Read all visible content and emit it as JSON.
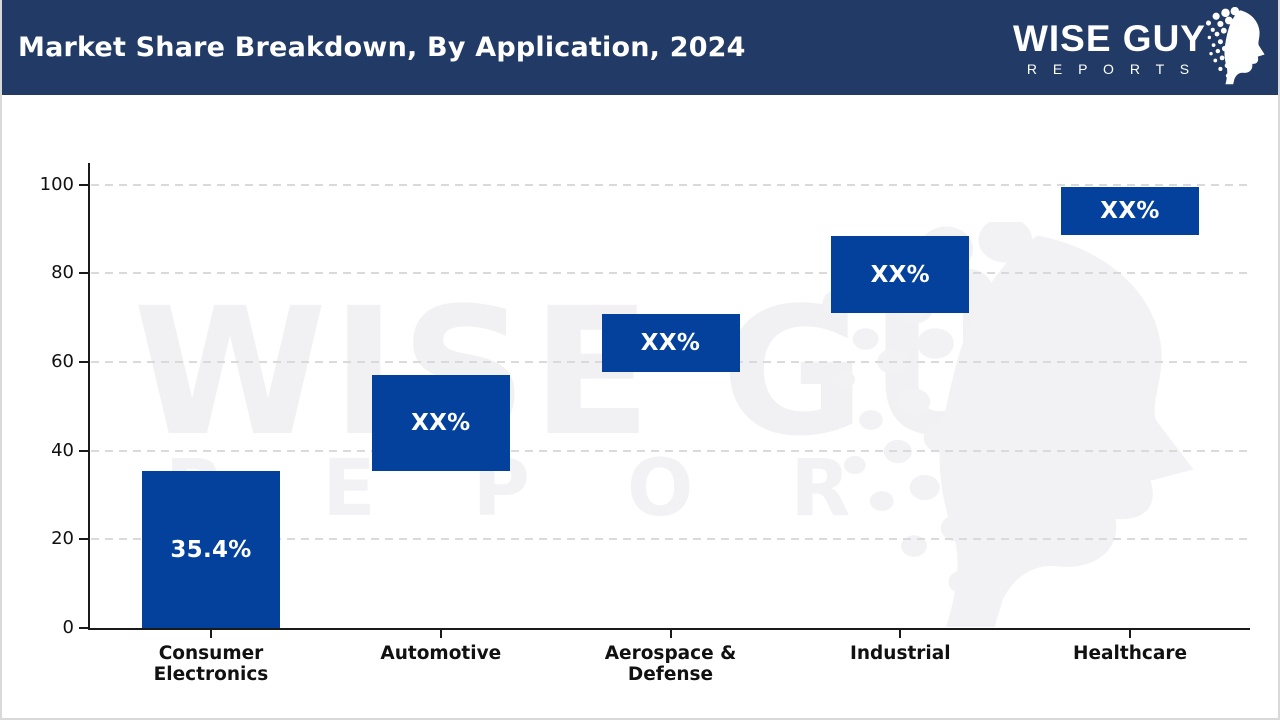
{
  "header": {
    "title": "Market Share Breakdown, By Application, 2024",
    "logo": {
      "line1": "WISE GUY",
      "line2": "R E P O R T S"
    }
  },
  "watermark": {
    "line1": "WISE GUY",
    "line2": "R E P O R T S"
  },
  "colors": {
    "header_bg": "#223A66",
    "bar_fill": "#04419C",
    "grid": "#DADADA",
    "axis": "#1A1A1A",
    "text": "#111111",
    "bar_label_text": "#FFFFFF",
    "watermark": "#F1F1F3",
    "page_border": "#D9D9D9"
  },
  "chart_data": {
    "type": "bar",
    "variant": "waterfall",
    "title": "Market Share Breakdown, By Application, 2024",
    "xlabel": "",
    "ylabel": "",
    "ylim": [
      0,
      104.7
    ],
    "y_ticks": [
      0,
      20,
      40,
      60,
      80,
      100
    ],
    "grid": "horizontal-dashed",
    "legend": "none",
    "categories": [
      {
        "name": "Consumer Electronics",
        "lines": [
          "Consumer",
          "Electronics"
        ]
      },
      {
        "name": "Automotive",
        "lines": [
          "Automotive"
        ]
      },
      {
        "name": "Aerospace & Defense",
        "lines": [
          "Aerospace &",
          "Defense"
        ]
      },
      {
        "name": "Industrial",
        "lines": [
          "Industrial"
        ]
      },
      {
        "name": "Healthcare",
        "lines": [
          "Healthcare"
        ]
      }
    ],
    "bars": [
      {
        "category": "Consumer Electronics",
        "label": "35.4%",
        "start": 0,
        "end": 35.4
      },
      {
        "category": "Automotive",
        "label": "XX%",
        "start": 35.4,
        "end": 57.2
      },
      {
        "category": "Aerospace & Defense",
        "label": "XX%",
        "start": 57.7,
        "end": 70.9
      },
      {
        "category": "Industrial",
        "label": "XX%",
        "start": 71.1,
        "end": 88.4
      },
      {
        "category": "Healthcare",
        "label": "XX%",
        "start": 88.7,
        "end": 99.5
      }
    ]
  }
}
